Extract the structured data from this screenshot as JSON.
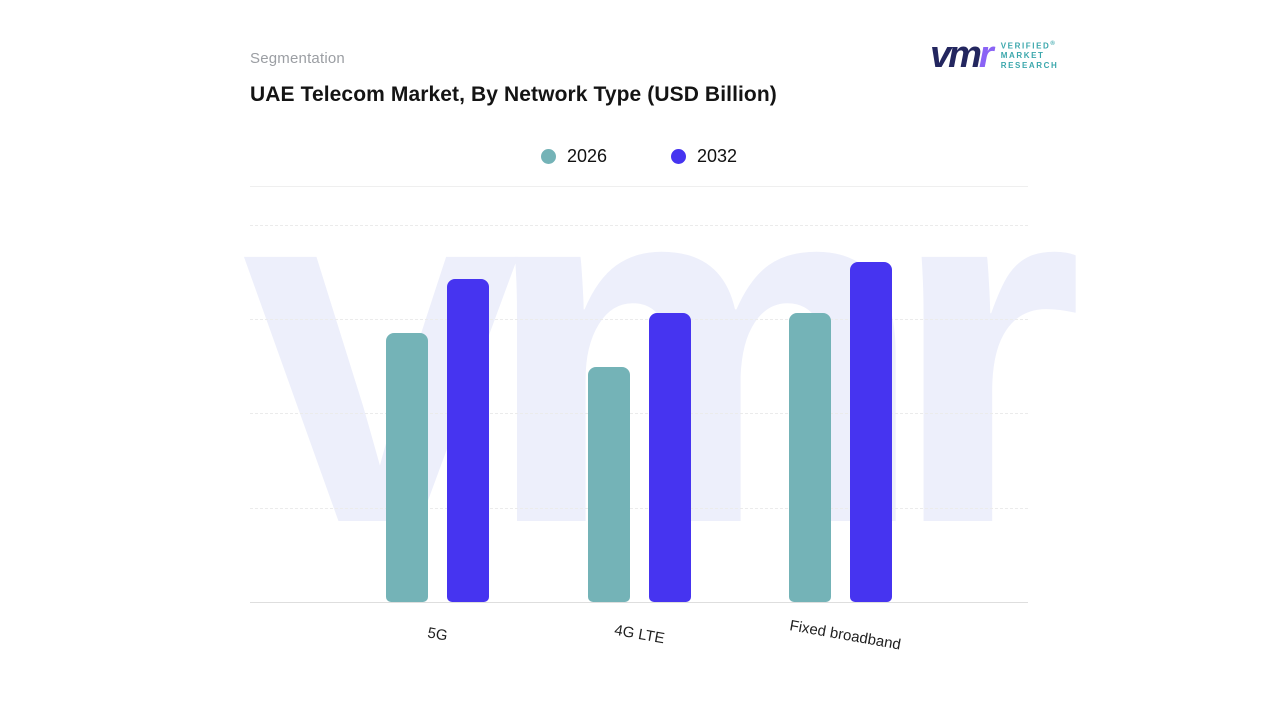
{
  "page": {
    "segmentation_label": "Segmentation",
    "title": "UAE Telecom Market, By Network Type (USD Billion)"
  },
  "logo": {
    "mark_vm": "vm",
    "mark_r": "r",
    "registered": "®",
    "lines": [
      "VERIFIED",
      "MARKET",
      "RESEARCH"
    ],
    "text_color": "#3ba7ac"
  },
  "legend": [
    {
      "label": "2026",
      "color": "#74b3b7"
    },
    {
      "label": "2032",
      "color": "#4634f0"
    }
  ],
  "chart_data": {
    "type": "bar",
    "title": "UAE Telecom Market, By Network Type (USD Billion)",
    "categories": [
      "5G",
      "4G LTE",
      "Fixed broadband"
    ],
    "series": [
      {
        "name": "2026",
        "color": "#74b3b7",
        "values": [
          79,
          69,
          85
        ]
      },
      {
        "name": "2032",
        "color": "#4634f0",
        "values": [
          95,
          85,
          100
        ]
      }
    ],
    "xlabel": "",
    "ylabel": "",
    "ylim": [
      0,
      105
    ],
    "value_units": "relative (no numeric axis shown; tallest bar = 100)",
    "grid": "horizontal dashed",
    "legend_position": "top center",
    "watermark": "vmr"
  }
}
